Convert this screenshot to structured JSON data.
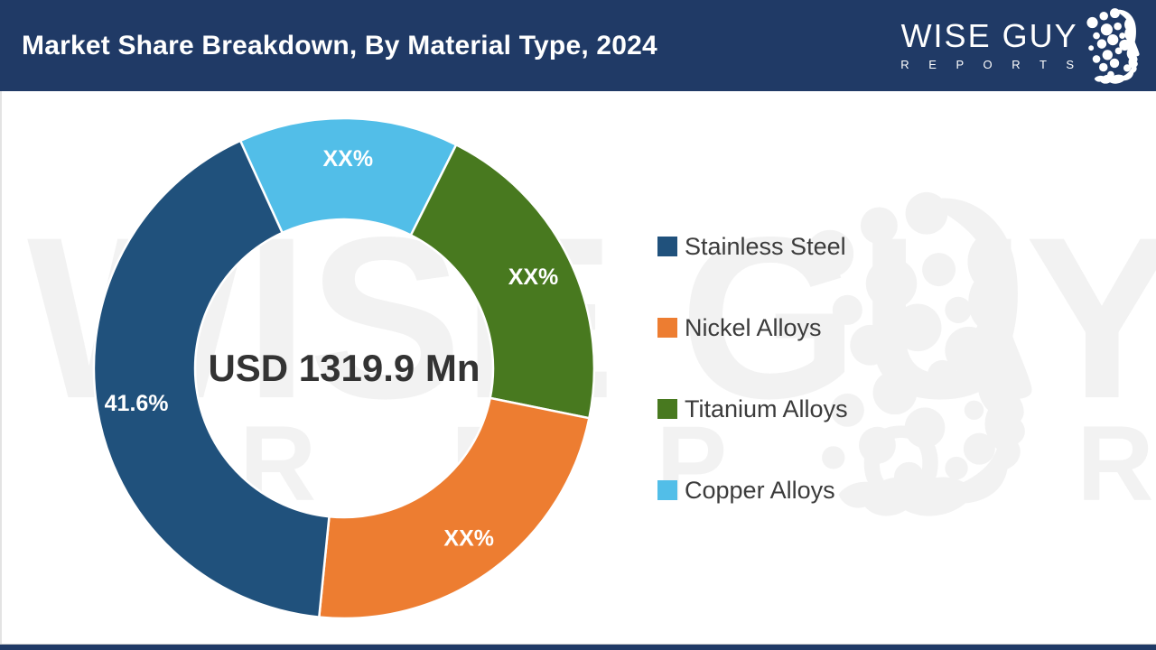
{
  "header": {
    "title": "Market Share Breakdown, By Material Type, 2024",
    "logo": {
      "name": "WISE GUY",
      "subtitle": "R E P O R T S"
    }
  },
  "watermark": {
    "line1": "WISE GUY",
    "line2": "R E P O R T S"
  },
  "chart_data": {
    "type": "pie",
    "subtype": "donut",
    "title": "Market Share Breakdown, By Material Type, 2024",
    "center_label": "USD 1319.9 Mn",
    "start_angle_deg_clockwise_from_north": -24.5,
    "draw_direction": "counterclockwise-from-start-in-legend-order",
    "legend_position": "right",
    "segments": [
      {
        "label": "Stainless Steel",
        "display_value": "41.6%",
        "value_pct": 41.6,
        "color": "#20517C"
      },
      {
        "label": "Nickel Alloys",
        "display_value": "XX%",
        "value_pct": 23.4,
        "color": "#ED7D31"
      },
      {
        "label": "Titanium Alloys",
        "display_value": "XX%",
        "value_pct": 20.8,
        "color": "#48791F"
      },
      {
        "label": "Copper Alloys",
        "display_value": "XX%",
        "value_pct": 14.2,
        "color": "#52BEE8"
      }
    ],
    "colors": {
      "header_bar": "#203A66",
      "center_text": "#333333",
      "legend_text": "#3b3b3b",
      "watermark": "#f2f2f2",
      "segment_gap": "#ffffff"
    }
  }
}
